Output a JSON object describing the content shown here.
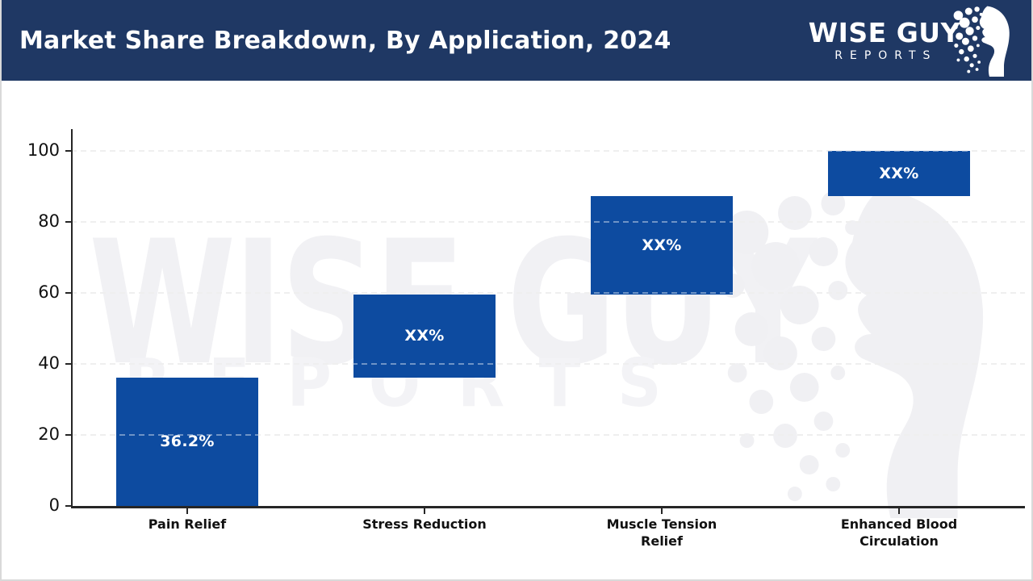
{
  "header": {
    "title": "Market Share Breakdown, By Application, 2024",
    "logo": {
      "line1": "WISE GUY",
      "line2": "REPORTS"
    }
  },
  "watermark": {
    "line1": "WISE GUY",
    "line2": "REPORTS"
  },
  "colors": {
    "header_bg": "#1f3864",
    "bar": "#0d4ba0",
    "bar_label": "#ffffff",
    "axis": "#262626",
    "grid": "#e4e4e4",
    "watermark": "#f1f1f4"
  },
  "chart_data": {
    "type": "bar",
    "subtype": "waterfall",
    "title": "Market Share Breakdown, By Application, 2024",
    "categories": [
      [
        "Pain Relief"
      ],
      [
        "Stress Reduction"
      ],
      [
        "Muscle Tension",
        "Relief"
      ],
      [
        "Enhanced Blood",
        "Circulation"
      ]
    ],
    "segments": [
      {
        "start": 0,
        "end": 36.2,
        "label": "36.2%"
      },
      {
        "start": 36.2,
        "end": 59.5,
        "label": "XX%"
      },
      {
        "start": 59.5,
        "end": 87.3,
        "label": "XX%"
      },
      {
        "start": 87.3,
        "end": 100,
        "label": "XX%"
      }
    ],
    "ylim": [
      0,
      100
    ],
    "yticks": [
      0,
      20,
      40,
      60,
      80,
      100
    ],
    "grid": "dashed-horizontal",
    "legend": "none",
    "bar_color": "#0d4ba0"
  }
}
